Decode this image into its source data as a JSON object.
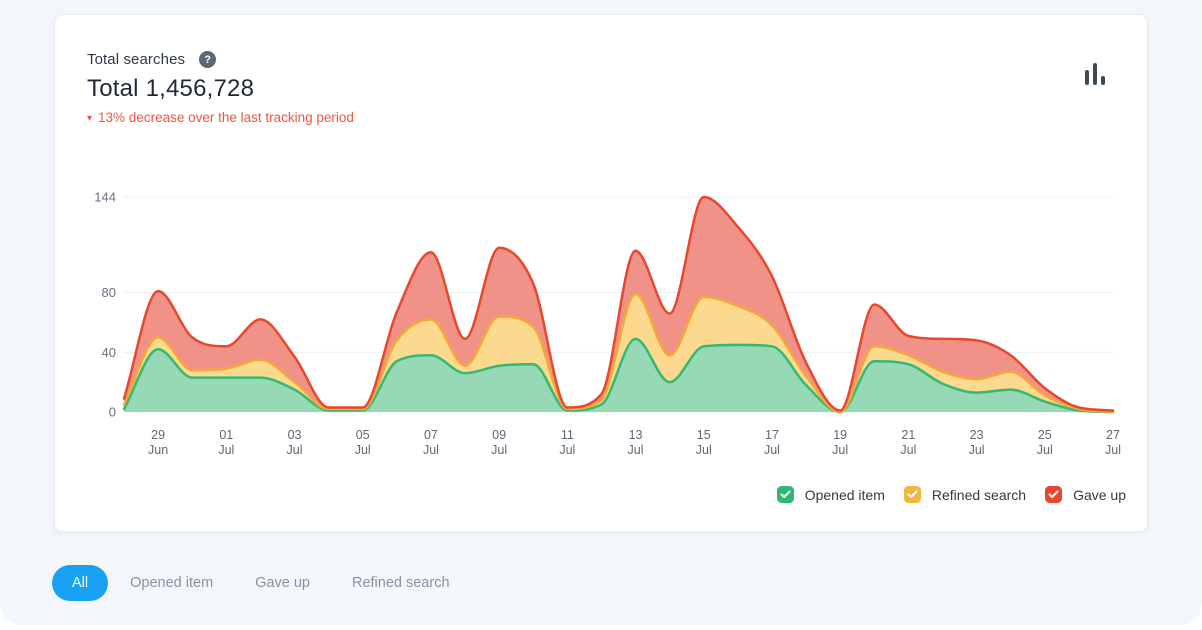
{
  "header": {
    "subtitle": "Total searches",
    "help_glyph": "?",
    "total_label": "Total 1,456,728",
    "trend_arrow": "▾",
    "trend_text": "13% decrease over the last tracking period",
    "trend_color": "#f0553f"
  },
  "toolbar": {
    "chart_type_icon": "bar-chart-icon"
  },
  "legend": {
    "items": [
      {
        "label": "Opened item",
        "color": "#2eb873"
      },
      {
        "label": "Refined search",
        "color": "#f5b53d"
      },
      {
        "label": "Gave up",
        "color": "#e8462d"
      }
    ]
  },
  "filters": {
    "active_bg": "#18a2f1",
    "items": [
      {
        "label": "All",
        "active": true
      },
      {
        "label": "Opened item",
        "active": false
      },
      {
        "label": "Gave up",
        "active": false
      },
      {
        "label": "Refined search",
        "active": false
      }
    ]
  },
  "chart_data": {
    "type": "area",
    "stacked": true,
    "title": "Total searches",
    "xlabel": "",
    "ylabel": "",
    "grid": "horizontal",
    "legend_position": "bottom-right",
    "ylim": [
      0,
      144
    ],
    "yticks": [
      0,
      40,
      80,
      144
    ],
    "xtick_indices": [
      1,
      3,
      5,
      7,
      9,
      11,
      13,
      15,
      17,
      19,
      21,
      23,
      25,
      27,
      29
    ],
    "categories": [
      "28 Jun",
      "29 Jun",
      "30 Jun",
      "01 Jul",
      "02 Jul",
      "03 Jul",
      "04 Jul",
      "05 Jul",
      "06 Jul",
      "07 Jul",
      "08 Jul",
      "09 Jul",
      "10 Jul",
      "11 Jul",
      "12 Jul",
      "13 Jul",
      "14 Jul",
      "15 Jul",
      "16 Jul",
      "17 Jul",
      "18 Jul",
      "19 Jul",
      "20 Jul",
      "21 Jul",
      "22 Jul",
      "23 Jul",
      "24 Jul",
      "25 Jul",
      "26 Jul",
      "27 Jul"
    ],
    "series": [
      {
        "name": "Opened item",
        "color": "#34b873",
        "fill": "#96d9b4",
        "values": [
          2,
          42,
          23,
          23,
          23,
          15,
          1,
          1,
          34,
          38,
          26,
          31,
          32,
          1,
          5,
          49,
          20,
          44,
          45,
          44,
          18,
          0,
          34,
          32,
          19,
          13,
          15,
          7,
          1,
          0
        ]
      },
      {
        "name": "Refined search",
        "color": "#f5a83a",
        "fill": "#fbd98e",
        "values": [
          3,
          8,
          5,
          6,
          12,
          5,
          1,
          1,
          14,
          24,
          5,
          33,
          25,
          1,
          3,
          30,
          18,
          33,
          26,
          14,
          6,
          0,
          10,
          6,
          8,
          9,
          12,
          4,
          1,
          0
        ]
      },
      {
        "name": "Gave up",
        "color": "#e8472c",
        "fill": "#f19289",
        "values": [
          4,
          31,
          22,
          15,
          27,
          17,
          1,
          1,
          19,
          45,
          18,
          46,
          29,
          1,
          4,
          29,
          28,
          67,
          53,
          33,
          9,
          1,
          28,
          13,
          22,
          26,
          11,
          5,
          1,
          1
        ]
      }
    ]
  }
}
